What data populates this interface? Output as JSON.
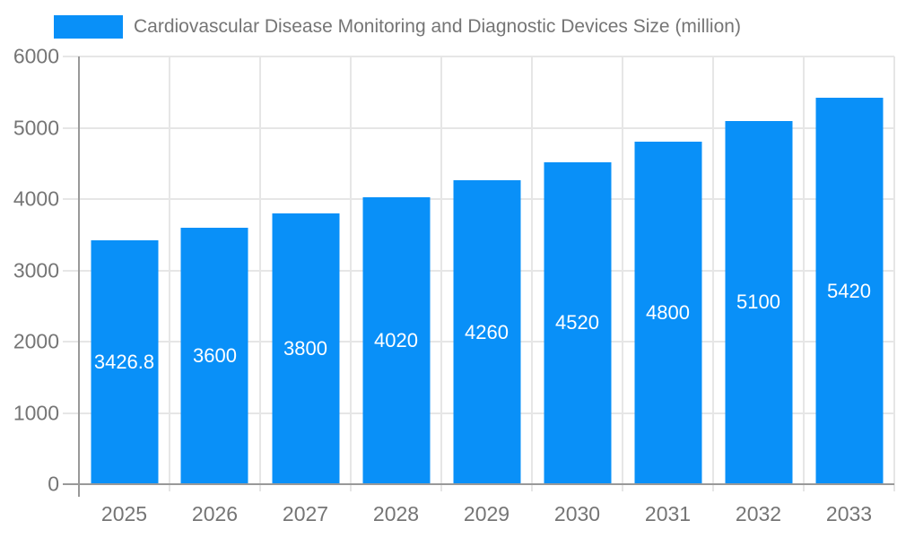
{
  "legend": {
    "label": "Cardiovascular Disease Monitoring and Diagnostic Devices Size (million)"
  },
  "chart_data": {
    "type": "bar",
    "title": "Cardiovascular Disease Monitoring and Diagnostic Devices Size (million)",
    "categories": [
      "2025",
      "2026",
      "2027",
      "2028",
      "2029",
      "2030",
      "2031",
      "2032",
      "2033"
    ],
    "values": [
      3426.8,
      3600,
      3800,
      4020,
      4260,
      4520,
      4800,
      5100,
      5420
    ],
    "bar_labels": [
      "3426.8",
      "3600",
      "3800",
      "4020",
      "4260",
      "4520",
      "4800",
      "5100",
      "5420"
    ],
    "xlabel": "",
    "ylabel": "",
    "ylim": [
      0,
      6000
    ],
    "y_ticks": [
      0,
      1000,
      2000,
      3000,
      4000,
      5000,
      6000
    ],
    "y_tick_labels": [
      "0",
      "1000",
      "2000",
      "3000",
      "4000",
      "5000",
      "6000"
    ],
    "grid": true,
    "legend_position": "top-left",
    "colors": {
      "bar": "#0990f8",
      "bar_label": "#ffffff",
      "grid": "#e6e6e6",
      "axis": "#999999",
      "text": "#757575",
      "background": "#ffffff"
    }
  }
}
